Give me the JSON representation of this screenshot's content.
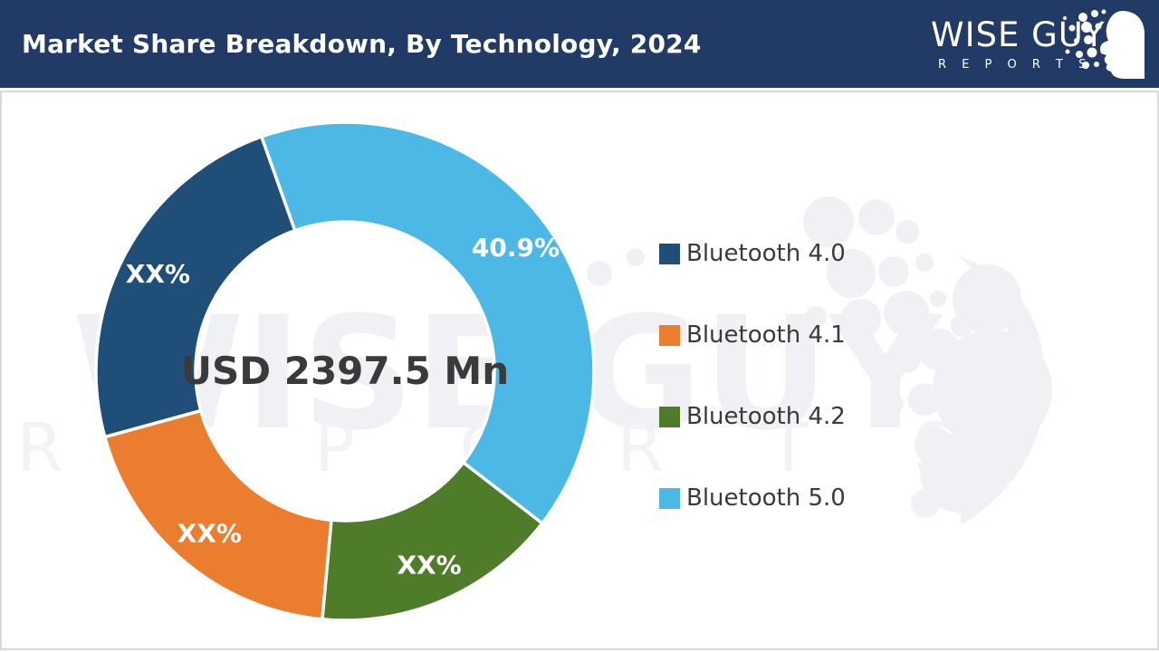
{
  "header": {
    "title": "Market Share Breakdown, By Technology, 2024",
    "logo": {
      "line1": "WISE GUY",
      "line2": "R E P O R T S"
    }
  },
  "watermark": {
    "line1": "WISE GUY",
    "line2": "R E P O R T S"
  },
  "chart_data": {
    "type": "pie",
    "donut": true,
    "title": "Market Share Breakdown, By Technology, 2024",
    "center_label": "USD 2397.5 Mn",
    "categories": [
      "Bluetooth 4.0",
      "Bluetooth 4.1",
      "Bluetooth 4.2",
      "Bluetooth 5.0"
    ],
    "values": [
      23.8,
      19.3,
      16.0,
      40.9
    ],
    "displayed_labels": [
      "XX%",
      "XX%",
      "XX%",
      "40.9%"
    ],
    "colors": [
      "#1F4E79",
      "#EB7D2F",
      "#4E7C28",
      "#4BB8E6"
    ],
    "inner_radius_ratio": 0.6,
    "start_angle_deg": -19.6,
    "draw_order": [
      3,
      2,
      1,
      0
    ],
    "legend_position": "right",
    "label_color": "#ffffff",
    "center_label_color": "#3a3a3a"
  },
  "colors": {
    "header_bg": "#213A66",
    "panel_border": "#d8d8d8",
    "watermark": "#f0f1f4"
  }
}
